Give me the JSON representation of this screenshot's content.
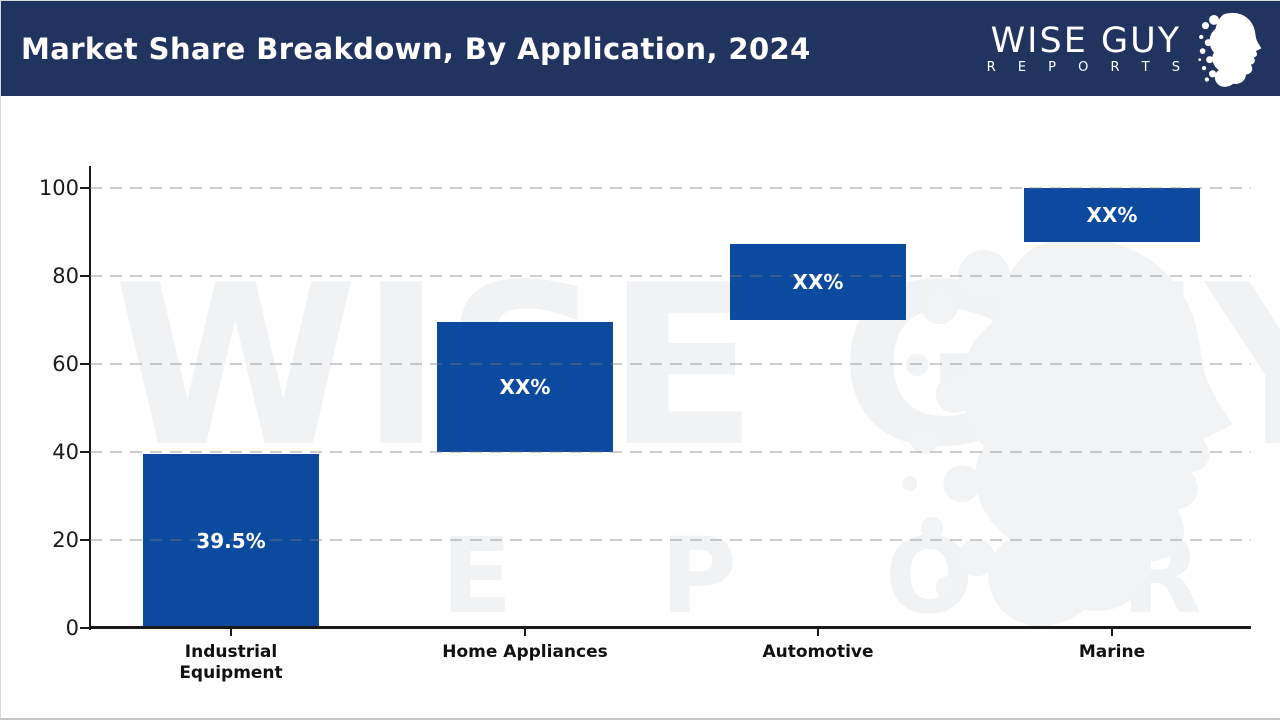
{
  "header": {
    "title": "Market Share Breakdown, By Application, 2024",
    "logo": {
      "line1": "WISE GUY",
      "line2": "R E P O R T S"
    }
  },
  "watermark": {
    "line1": "WISE GUY",
    "line2": "R E P O R T S"
  },
  "colors": {
    "header_bg": "#21345F",
    "bar": "#0B4A9F",
    "bar_label": "#FFFFFF",
    "axis": "#1a1a1a",
    "grid": "#c9c9c9",
    "tick_label": "#1a1a1a",
    "watermark": "#F1F2F4",
    "title": "#FFFFFF"
  },
  "chart_data": {
    "type": "bar",
    "subtype": "waterfall",
    "title": "Market Share Breakdown, By Application, 2024",
    "categories": [
      "Industrial Equipment",
      "Home Appliances",
      "Automotive",
      "Marine"
    ],
    "category_lines": [
      [
        "Industrial",
        "Equipment"
      ],
      [
        "Home Appliances"
      ],
      [
        "Automotive"
      ],
      [
        "Marine"
      ]
    ],
    "series": [
      {
        "name": "Market Share",
        "segments": [
          {
            "category": "Industrial Equipment",
            "from": 0,
            "to": 39.5,
            "label": "39.5%"
          },
          {
            "category": "Home Appliances",
            "from": 40,
            "to": 69.5,
            "label": "XX%"
          },
          {
            "category": "Automotive",
            "from": 70,
            "to": 87.3,
            "label": "XX%"
          },
          {
            "category": "Marine",
            "from": 87.7,
            "to": 100,
            "label": "XX%"
          }
        ]
      }
    ],
    "xlabel": "",
    "ylabel": "",
    "ylim": [
      0,
      100
    ],
    "yticks": [
      0,
      20,
      40,
      60,
      80,
      100
    ],
    "grid": "horizontal dashed, drawn over bars",
    "legend": "none"
  }
}
